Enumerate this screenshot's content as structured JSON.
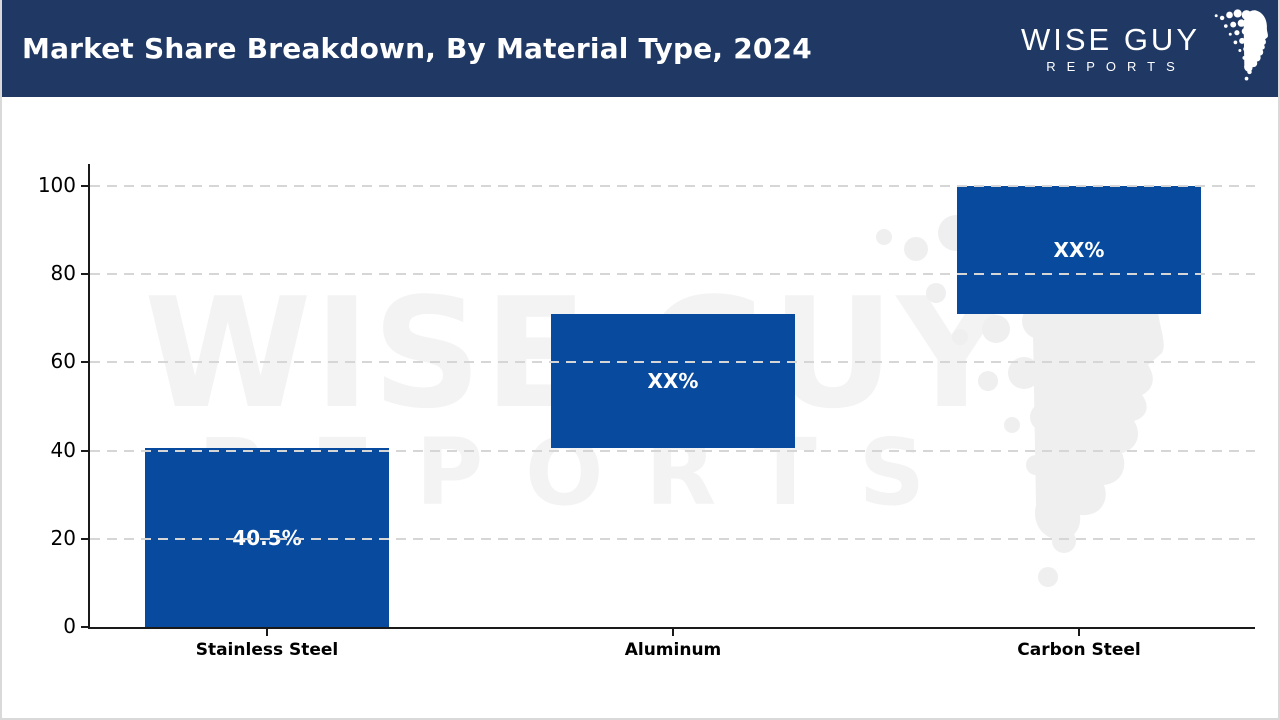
{
  "header": {
    "title": "Market Share Breakdown, By Material Type, 2024",
    "logo": {
      "line1": "WISE GUY",
      "line2": "REPORTS"
    }
  },
  "watermark": {
    "line1": "WISE GUY",
    "line2": "REPORTS"
  },
  "chart_data": {
    "type": "bar",
    "subtype": "floating-waterfall",
    "title": "Market Share Breakdown, By Material Type, 2024",
    "categories": [
      "Stainless Steel",
      "Aluminum",
      "Carbon Steel"
    ],
    "segments": [
      {
        "category": "Stainless Steel",
        "start": 0,
        "end": 40.5,
        "label": "40.5%"
      },
      {
        "category": "Aluminum",
        "start": 40.5,
        "end": 71,
        "label": "XX%"
      },
      {
        "category": "Carbon Steel",
        "start": 71,
        "end": 100,
        "label": "XX%"
      }
    ],
    "y_ticks": [
      0,
      20,
      40,
      60,
      80,
      100
    ],
    "ylim": [
      0,
      105
    ],
    "xlabel": "",
    "ylabel": "",
    "grid": "horizontal-dashed",
    "legend": "none",
    "bar_color": "#084a9e",
    "bar_label_color": "#ffffff",
    "grid_color": "#d6d6d6",
    "axis_color": "#1a1a1a",
    "header_bg": "#1f3864",
    "watermark_color": "#f3f3f3"
  }
}
